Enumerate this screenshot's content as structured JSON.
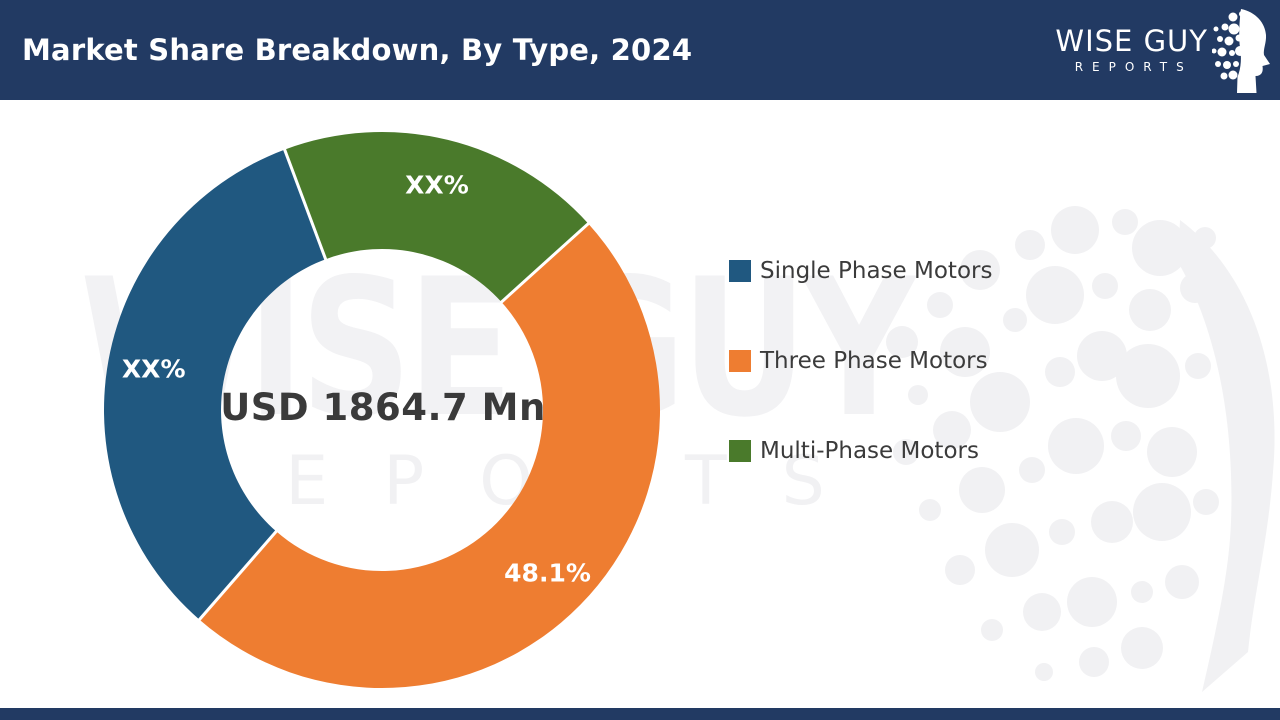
{
  "header": {
    "title": "Market Share Breakdown, By Type, 2024",
    "background_color": "#223A63",
    "logo": {
      "line1": "WISE GUY",
      "line2": "REPORTS",
      "head_icon": "dotted-head-profile-icon"
    }
  },
  "chart_data": {
    "type": "donut",
    "title": "Market Share Breakdown, By Type, 2024",
    "center_label": "USD 1864.7 Mn",
    "start_angle_deg": -20.5,
    "legend_position": "right",
    "segments": [
      {
        "name": "Multi-Phase Motors",
        "display_label": "XX%",
        "value_pct": 19.0,
        "color": "#4A7A2B"
      },
      {
        "name": "Three Phase Motors",
        "display_label": "48.1%",
        "value_pct": 48.1,
        "color": "#EE7D31"
      },
      {
        "name": "Single Phase Motors",
        "display_label": "XX%",
        "value_pct": 32.9,
        "color": "#205880"
      }
    ]
  },
  "legend": {
    "items": [
      {
        "label": "Single Phase Motors",
        "color": "#205880"
      },
      {
        "label": "Three Phase Motors",
        "color": "#EE7D31"
      },
      {
        "label": "Multi-Phase Motors",
        "color": "#4A7A2B"
      }
    ]
  },
  "watermark": {
    "line1": "WISE GUY",
    "line2": "REPORTS"
  },
  "colors": {
    "header_navy": "#223A63",
    "slice_blue": "#205880",
    "slice_orange": "#EE7D31",
    "slice_green": "#4A7A2B",
    "center_text": "#3A3A3A",
    "watermark_gray": "#F2F2F4"
  }
}
